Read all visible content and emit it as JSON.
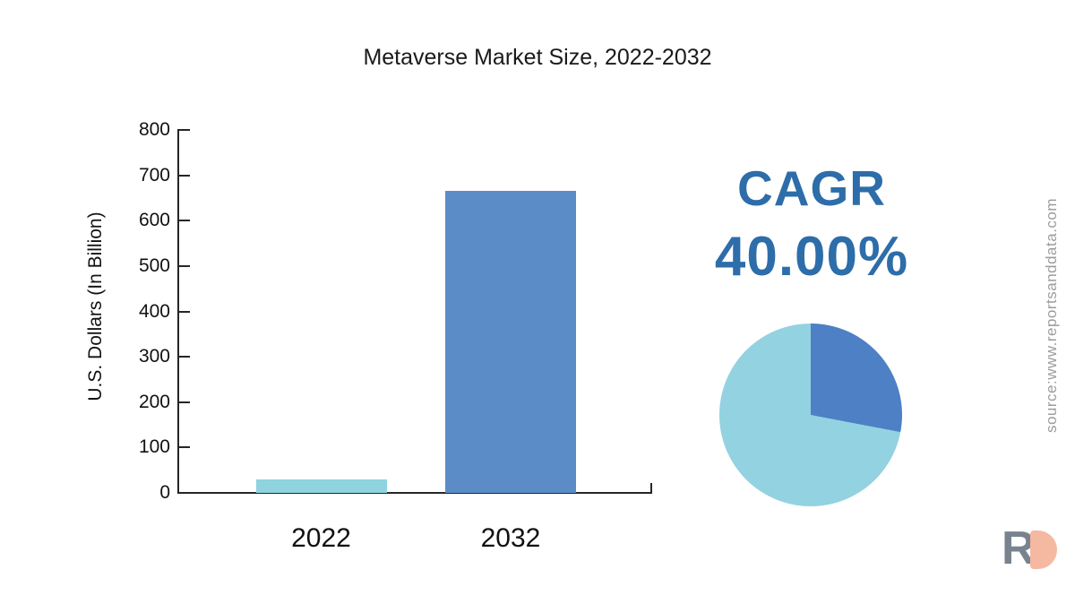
{
  "title": "Metaverse Market Size, 2022-2032",
  "chart_data": [
    {
      "type": "bar",
      "title": "Metaverse Market Size, 2022-2032",
      "categories": [
        "2022",
        "2032"
      ],
      "values": [
        30,
        665
      ],
      "bar_colors": [
        "#8ed3de",
        "#5b8cc8"
      ],
      "xlabel": "",
      "ylabel": "U.S. Dollars (In Billion)",
      "ylim": [
        0,
        800
      ],
      "yticks": [
        0,
        100,
        200,
        300,
        400,
        500,
        600,
        700,
        800
      ],
      "grid": false,
      "legend": false
    },
    {
      "type": "pie",
      "slices": [
        {
          "name": "cagr-highlight",
          "value": 28,
          "color": "#4d80c4"
        },
        {
          "name": "remainder",
          "value": 72,
          "color": "#93d2e0"
        }
      ],
      "start_angle_deg": 0,
      "direction": "clockwise",
      "legend": false
    }
  ],
  "cagr": {
    "label": "CAGR",
    "value": "40.00%",
    "color": "#2d6da9"
  },
  "source": "source:www.reportsanddata.com",
  "logo": {
    "letter_r": "R",
    "r_color": "#79838f",
    "d_color": "#f5b8a1"
  }
}
